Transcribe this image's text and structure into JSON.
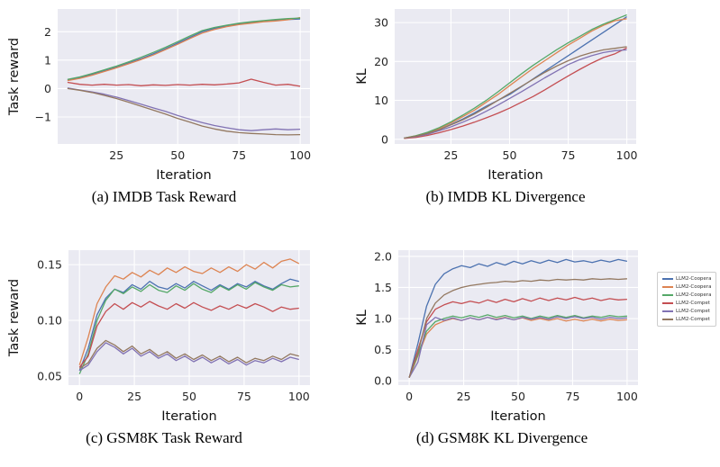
{
  "palette": {
    "blue": "#4C72B0",
    "orange": "#DD8452",
    "green": "#55A868",
    "red": "#C44E52",
    "purple": "#8172B3",
    "brown": "#937860"
  },
  "plot_style": {
    "background": "#EAEAF2",
    "gridline_color": "#FFFFFF"
  },
  "figures": {
    "a": {
      "caption": "(a) IMDB Task Reward"
    },
    "b": {
      "caption": "(b) IMDB KL Divergence"
    },
    "c": {
      "caption": "(c) GSM8K Task Reward"
    },
    "d": {
      "caption": "(d) GSM8K KL Divergence"
    }
  },
  "legend": {
    "position": "right-of-chart-d",
    "items": [
      {
        "label": "LLM2-Coopera",
        "color": "blue"
      },
      {
        "label": "LLM2-Coopera",
        "color": "orange"
      },
      {
        "label": "LLM2-Coopera",
        "color": "green"
      },
      {
        "label": "LLM2-Compet",
        "color": "red"
      },
      {
        "label": "LLM2-Compet",
        "color": "purple"
      },
      {
        "label": "LLM2-Compet",
        "color": "brown"
      }
    ]
  },
  "chart_data": [
    {
      "id": "a",
      "type": "line",
      "title": "",
      "xlabel": "Iteration",
      "ylabel": "Task reward",
      "xlim": [
        1,
        104
      ],
      "ylim": [
        -1.95,
        2.8
      ],
      "xticks": [
        25,
        50,
        75,
        100
      ],
      "yticks": [
        -1,
        0,
        1,
        2
      ],
      "ytick_labels": [
        "−1",
        "0",
        "1",
        "2"
      ],
      "grid": true,
      "x": [
        5,
        10,
        15,
        20,
        25,
        30,
        35,
        40,
        45,
        50,
        55,
        60,
        65,
        70,
        75,
        80,
        85,
        90,
        95,
        100
      ],
      "series": [
        {
          "name": "LLM2-Coopera",
          "color": "blue",
          "values": [
            0.3,
            0.38,
            0.5,
            0.62,
            0.75,
            0.9,
            1.05,
            1.22,
            1.4,
            1.6,
            1.8,
            2.0,
            2.12,
            2.2,
            2.27,
            2.32,
            2.36,
            2.4,
            2.43,
            2.45
          ]
        },
        {
          "name": "LLM2-Coopera",
          "color": "orange",
          "values": [
            0.28,
            0.36,
            0.47,
            0.6,
            0.73,
            0.87,
            1.02,
            1.18,
            1.37,
            1.56,
            1.76,
            1.95,
            2.08,
            2.18,
            2.25,
            2.3,
            2.35,
            2.38,
            2.42,
            2.5
          ]
        },
        {
          "name": "LLM2-Coopera",
          "color": "green",
          "values": [
            0.32,
            0.41,
            0.53,
            0.66,
            0.79,
            0.94,
            1.1,
            1.27,
            1.45,
            1.65,
            1.85,
            2.04,
            2.15,
            2.23,
            2.3,
            2.35,
            2.39,
            2.43,
            2.46,
            2.48
          ]
        },
        {
          "name": "LLM2-Compet",
          "color": "red",
          "values": [
            0.22,
            0.15,
            0.12,
            0.15,
            0.12,
            0.14,
            0.1,
            0.13,
            0.11,
            0.14,
            0.12,
            0.15,
            0.13,
            0.16,
            0.2,
            0.33,
            0.22,
            0.12,
            0.15,
            0.08
          ]
        },
        {
          "name": "LLM2-Compet",
          "color": "purple",
          "values": [
            0.02,
            -0.05,
            -0.12,
            -0.2,
            -0.3,
            -0.42,
            -0.55,
            -0.68,
            -0.8,
            -0.95,
            -1.08,
            -1.2,
            -1.3,
            -1.38,
            -1.45,
            -1.48,
            -1.45,
            -1.42,
            -1.45,
            -1.43
          ]
        },
        {
          "name": "LLM2-Compet",
          "color": "brown",
          "values": [
            0.0,
            -0.06,
            -0.14,
            -0.24,
            -0.35,
            -0.48,
            -0.62,
            -0.76,
            -0.9,
            -1.05,
            -1.18,
            -1.32,
            -1.42,
            -1.5,
            -1.55,
            -1.58,
            -1.6,
            -1.62,
            -1.63,
            -1.62
          ]
        }
      ]
    },
    {
      "id": "b",
      "type": "line",
      "title": "",
      "xlabel": "Iteration",
      "ylabel": "KL",
      "xlim": [
        1,
        104
      ],
      "ylim": [
        -1.2,
        33.5
      ],
      "xticks": [
        25,
        50,
        75,
        100
      ],
      "yticks": [
        0,
        10,
        20,
        30
      ],
      "ytick_labels": [
        "0",
        "10",
        "20",
        "30"
      ],
      "grid": true,
      "x": [
        5,
        10,
        15,
        20,
        25,
        30,
        35,
        40,
        45,
        50,
        55,
        60,
        65,
        70,
        75,
        80,
        85,
        90,
        95,
        100
      ],
      "series": [
        {
          "name": "LLM2-Coopera",
          "color": "blue",
          "values": [
            0.3,
            0.8,
            1.5,
            2.5,
            3.8,
            5.2,
            6.8,
            8.5,
            10.0,
            11.5,
            13.5,
            15.5,
            17.5,
            19.5,
            21.5,
            23.5,
            25.5,
            27.5,
            29.5,
            31.5
          ]
        },
        {
          "name": "LLM2-Coopera",
          "color": "orange",
          "values": [
            0.3,
            0.9,
            1.7,
            2.8,
            4.2,
            5.8,
            7.5,
            9.5,
            11.5,
            13.8,
            16.0,
            18.2,
            20.2,
            22.2,
            24.2,
            26.0,
            27.8,
            29.3,
            30.5,
            31.0
          ]
        },
        {
          "name": "LLM2-Coopera",
          "color": "green",
          "values": [
            0.3,
            0.9,
            1.8,
            3.0,
            4.5,
            6.2,
            8.0,
            10.0,
            12.2,
            14.5,
            16.8,
            19.0,
            21.0,
            23.0,
            24.8,
            26.5,
            28.2,
            29.6,
            30.8,
            32.0
          ]
        },
        {
          "name": "LLM2-Compet",
          "color": "red",
          "values": [
            0.2,
            0.5,
            1.0,
            1.7,
            2.5,
            3.4,
            4.4,
            5.5,
            6.7,
            8.0,
            9.5,
            11.0,
            12.7,
            14.5,
            16.3,
            18.0,
            19.6,
            21.0,
            22.0,
            23.5
          ]
        },
        {
          "name": "LLM2-Compet",
          "color": "purple",
          "values": [
            0.3,
            0.7,
            1.3,
            2.2,
            3.2,
            4.4,
            5.7,
            7.2,
            8.8,
            10.5,
            12.2,
            14.0,
            15.8,
            17.5,
            19.2,
            20.5,
            21.5,
            22.3,
            22.8,
            23.0
          ]
        },
        {
          "name": "LLM2-Compet",
          "color": "brown",
          "values": [
            0.3,
            0.8,
            1.5,
            2.5,
            3.7,
            5.0,
            6.5,
            8.2,
            10.0,
            11.8,
            13.6,
            15.4,
            17.2,
            18.8,
            20.2,
            21.4,
            22.3,
            23.0,
            23.4,
            23.8
          ]
        }
      ]
    },
    {
      "id": "c",
      "type": "line",
      "title": "",
      "xlabel": "Iteration",
      "ylabel": "Task reward",
      "xlim": [
        -5,
        105
      ],
      "ylim": [
        0.042,
        0.163
      ],
      "xticks": [
        0,
        25,
        50,
        75,
        100
      ],
      "yticks": [
        0.05,
        0.1,
        0.15
      ],
      "ytick_labels": [
        "0.05",
        "0.10",
        "0.15"
      ],
      "grid": true,
      "x": [
        0,
        4,
        8,
        12,
        16,
        20,
        24,
        28,
        32,
        36,
        40,
        44,
        48,
        52,
        56,
        60,
        64,
        68,
        72,
        76,
        80,
        84,
        88,
        92,
        96,
        100
      ],
      "series": [
        {
          "name": "LLM2-Coopera",
          "color": "blue",
          "values": [
            0.055,
            0.075,
            0.105,
            0.12,
            0.128,
            0.125,
            0.132,
            0.128,
            0.135,
            0.13,
            0.128,
            0.133,
            0.129,
            0.135,
            0.131,
            0.127,
            0.132,
            0.128,
            0.133,
            0.13,
            0.135,
            0.131,
            0.128,
            0.133,
            0.137,
            0.135
          ]
        },
        {
          "name": "LLM2-Coopera",
          "color": "orange",
          "values": [
            0.06,
            0.085,
            0.115,
            0.13,
            0.14,
            0.137,
            0.143,
            0.139,
            0.145,
            0.141,
            0.147,
            0.143,
            0.148,
            0.144,
            0.142,
            0.147,
            0.143,
            0.148,
            0.144,
            0.15,
            0.146,
            0.152,
            0.147,
            0.153,
            0.155,
            0.151
          ]
        },
        {
          "name": "LLM2-Coopera",
          "color": "green",
          "values": [
            0.052,
            0.07,
            0.1,
            0.118,
            0.128,
            0.124,
            0.13,
            0.126,
            0.132,
            0.127,
            0.125,
            0.131,
            0.127,
            0.133,
            0.128,
            0.125,
            0.131,
            0.127,
            0.132,
            0.128,
            0.134,
            0.13,
            0.127,
            0.132,
            0.13,
            0.131
          ]
        },
        {
          "name": "LLM2-Compet",
          "color": "red",
          "values": [
            0.058,
            0.068,
            0.095,
            0.108,
            0.115,
            0.11,
            0.116,
            0.112,
            0.117,
            0.113,
            0.11,
            0.115,
            0.111,
            0.116,
            0.112,
            0.109,
            0.113,
            0.11,
            0.114,
            0.111,
            0.115,
            0.112,
            0.108,
            0.112,
            0.11,
            0.111
          ]
        },
        {
          "name": "LLM2-Compet",
          "color": "purple",
          "values": [
            0.055,
            0.06,
            0.072,
            0.08,
            0.076,
            0.07,
            0.075,
            0.068,
            0.072,
            0.066,
            0.07,
            0.064,
            0.068,
            0.063,
            0.067,
            0.062,
            0.066,
            0.061,
            0.065,
            0.06,
            0.064,
            0.062,
            0.066,
            0.063,
            0.067,
            0.065
          ]
        },
        {
          "name": "LLM2-Compet",
          "color": "brown",
          "values": [
            0.057,
            0.062,
            0.075,
            0.082,
            0.078,
            0.072,
            0.077,
            0.07,
            0.074,
            0.068,
            0.072,
            0.066,
            0.07,
            0.065,
            0.069,
            0.064,
            0.068,
            0.063,
            0.067,
            0.062,
            0.066,
            0.064,
            0.068,
            0.065,
            0.07,
            0.068
          ]
        }
      ]
    },
    {
      "id": "d",
      "type": "line",
      "title": "",
      "xlabel": "Iteration",
      "ylabel": "KL",
      "xlim": [
        -5,
        105
      ],
      "ylim": [
        -0.07,
        2.1
      ],
      "xticks": [
        0,
        25,
        50,
        75,
        100
      ],
      "yticks": [
        0.0,
        0.5,
        1.0,
        1.5,
        2.0
      ],
      "ytick_labels": [
        "0.0",
        "0.5",
        "1.0",
        "1.5",
        "2.0"
      ],
      "grid": true,
      "legend": "outside-right",
      "x": [
        0,
        4,
        8,
        12,
        16,
        20,
        24,
        28,
        32,
        36,
        40,
        44,
        48,
        52,
        56,
        60,
        64,
        68,
        72,
        76,
        80,
        84,
        88,
        92,
        96,
        100
      ],
      "series": [
        {
          "name": "LLM2-Coopera",
          "color": "blue",
          "values": [
            0.05,
            0.6,
            1.2,
            1.55,
            1.72,
            1.8,
            1.85,
            1.82,
            1.88,
            1.84,
            1.9,
            1.86,
            1.92,
            1.88,
            1.93,
            1.89,
            1.94,
            1.9,
            1.95,
            1.91,
            1.93,
            1.9,
            1.94,
            1.91,
            1.95,
            1.92
          ]
        },
        {
          "name": "LLM2-Coopera",
          "color": "orange",
          "values": [
            0.05,
            0.4,
            0.75,
            0.9,
            0.96,
            1.0,
            0.97,
            1.01,
            0.98,
            1.02,
            0.99,
            1.02,
            0.98,
            1.01,
            0.97,
            1.0,
            0.97,
            1.0,
            0.96,
            0.99,
            0.96,
            0.99,
            0.96,
            0.99,
            0.97,
            0.98
          ]
        },
        {
          "name": "LLM2-Coopera",
          "color": "green",
          "values": [
            0.05,
            0.42,
            0.8,
            0.95,
            1.0,
            1.04,
            1.01,
            1.05,
            1.02,
            1.06,
            1.02,
            1.05,
            1.01,
            1.04,
            1.0,
            1.04,
            1.01,
            1.05,
            1.02,
            1.05,
            1.01,
            1.04,
            1.02,
            1.05,
            1.03,
            1.04
          ]
        },
        {
          "name": "LLM2-Compet",
          "color": "red",
          "values": [
            0.05,
            0.5,
            0.95,
            1.15,
            1.22,
            1.27,
            1.24,
            1.28,
            1.25,
            1.3,
            1.26,
            1.31,
            1.27,
            1.32,
            1.28,
            1.33,
            1.29,
            1.33,
            1.3,
            1.34,
            1.3,
            1.33,
            1.29,
            1.32,
            1.3,
            1.31
          ]
        },
        {
          "name": "LLM2-Compet",
          "color": "purple",
          "values": [
            0.05,
            0.3,
            0.9,
            1.02,
            0.97,
            1.01,
            0.97,
            1.01,
            0.98,
            1.02,
            0.98,
            1.01,
            0.98,
            1.02,
            0.99,
            1.02,
            0.99,
            1.03,
            1.0,
            1.03,
            1.0,
            1.02,
            0.99,
            1.02,
            1.0,
            1.01
          ]
        },
        {
          "name": "LLM2-Compet",
          "color": "brown",
          "values": [
            0.05,
            0.45,
            1.0,
            1.25,
            1.38,
            1.45,
            1.5,
            1.53,
            1.55,
            1.57,
            1.58,
            1.6,
            1.59,
            1.61,
            1.6,
            1.62,
            1.61,
            1.63,
            1.62,
            1.63,
            1.62,
            1.64,
            1.63,
            1.64,
            1.63,
            1.64
          ]
        }
      ]
    }
  ]
}
